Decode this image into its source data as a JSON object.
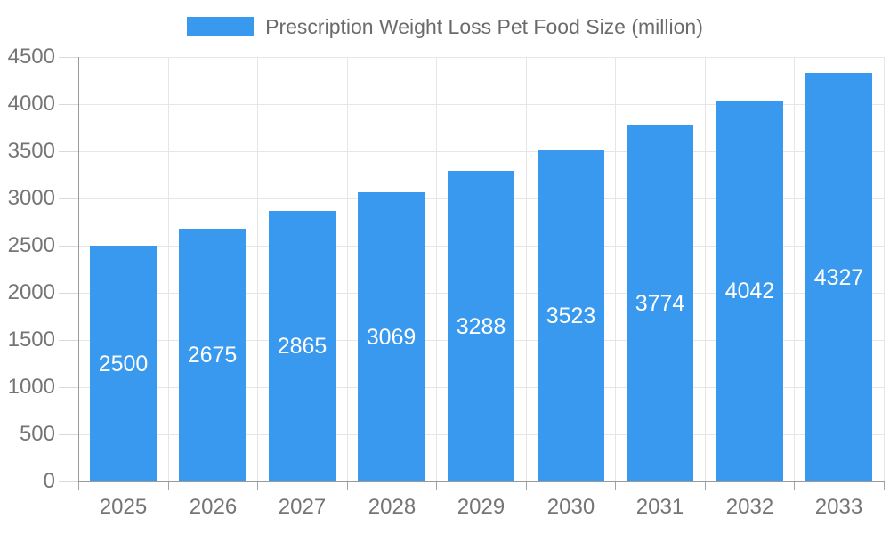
{
  "legend": {
    "label": "Prescription Weight Loss Pet Food Size (million)"
  },
  "chart_data": {
    "type": "bar",
    "title": "Prescription Weight Loss Pet Food Size (million)",
    "categories": [
      "2025",
      "2026",
      "2027",
      "2028",
      "2029",
      "2030",
      "2031",
      "2032",
      "2033"
    ],
    "values": [
      2500,
      2675,
      2865,
      3069,
      3288,
      3523,
      3774,
      4042,
      4327
    ],
    "xlabel": "",
    "ylabel": "",
    "ylim": [
      0,
      4500
    ],
    "ytick_step": 500,
    "ytick_labels": [
      "0",
      "500",
      "1000",
      "1500",
      "2000",
      "2500",
      "3000",
      "3500",
      "4000",
      "4500"
    ],
    "grid": true,
    "legend_position": "top",
    "bar_labels_inside": true,
    "colors": {
      "bar": "#3999ee",
      "bar_label": "#ffffff",
      "axis_line": "#9a9a9a",
      "gridline": "#e6e6e6",
      "y_tick": "#d9d9d9",
      "x_tick": "#a3a3a3",
      "tick_label": "#757575",
      "legend_text": "#6b6b6b",
      "background": "#ffffff"
    }
  }
}
